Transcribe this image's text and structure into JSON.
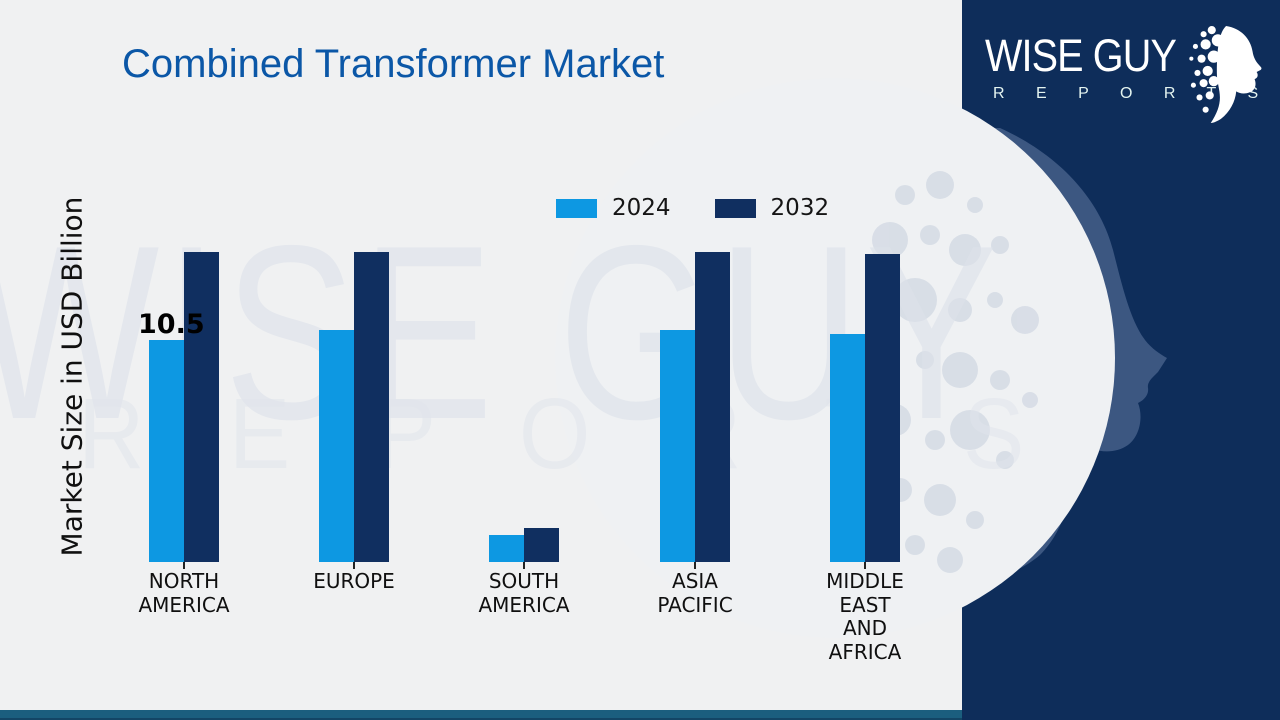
{
  "watermark": {
    "line1": "WISE GUY",
    "line2": "R E P O R T S"
  },
  "logo": {
    "line1": "WISE GUY",
    "line2": "R E P O R T S"
  },
  "colors": {
    "background": "#f0f1f2",
    "title_blue": "#0b57a7",
    "bar_2024": "#0d98e2",
    "bar_2032": "#102f60",
    "panel_navy": "#0e2d5a",
    "face_silhouette": "#3c5781",
    "bottom_bar_teal": "#1b5e7e"
  },
  "chart_data": {
    "type": "bar",
    "title": "Combined Transformer Market",
    "xlabel": "",
    "ylabel": "Market Size in USD Billion",
    "categories": [
      "NORTH AMERICA",
      "EUROPE",
      "SOUTH AMERICA",
      "ASIA PACIFIC",
      "MIDDLE EAST AND AFRICA"
    ],
    "category_label_lines": [
      [
        "NORTH",
        "AMERICA"
      ],
      [
        "EUROPE"
      ],
      [
        "SOUTH",
        "AMERICA"
      ],
      [
        "ASIA",
        "PACIFIC"
      ],
      [
        "MIDDLE",
        "EAST",
        "AND",
        "AFRICA"
      ]
    ],
    "series": [
      {
        "name": "2024",
        "color": "#0d98e2",
        "values": [
          10.5,
          11.0,
          1.3,
          11.0,
          10.8
        ]
      },
      {
        "name": "2032",
        "color": "#102f60",
        "values": [
          14.7,
          14.7,
          1.6,
          14.7,
          14.6
        ]
      }
    ],
    "annotations": [
      {
        "category_index": 0,
        "series_index": 0,
        "text": "10.5"
      }
    ],
    "legend_position": "top",
    "grid": false,
    "ylim": [
      0,
      16
    ]
  }
}
